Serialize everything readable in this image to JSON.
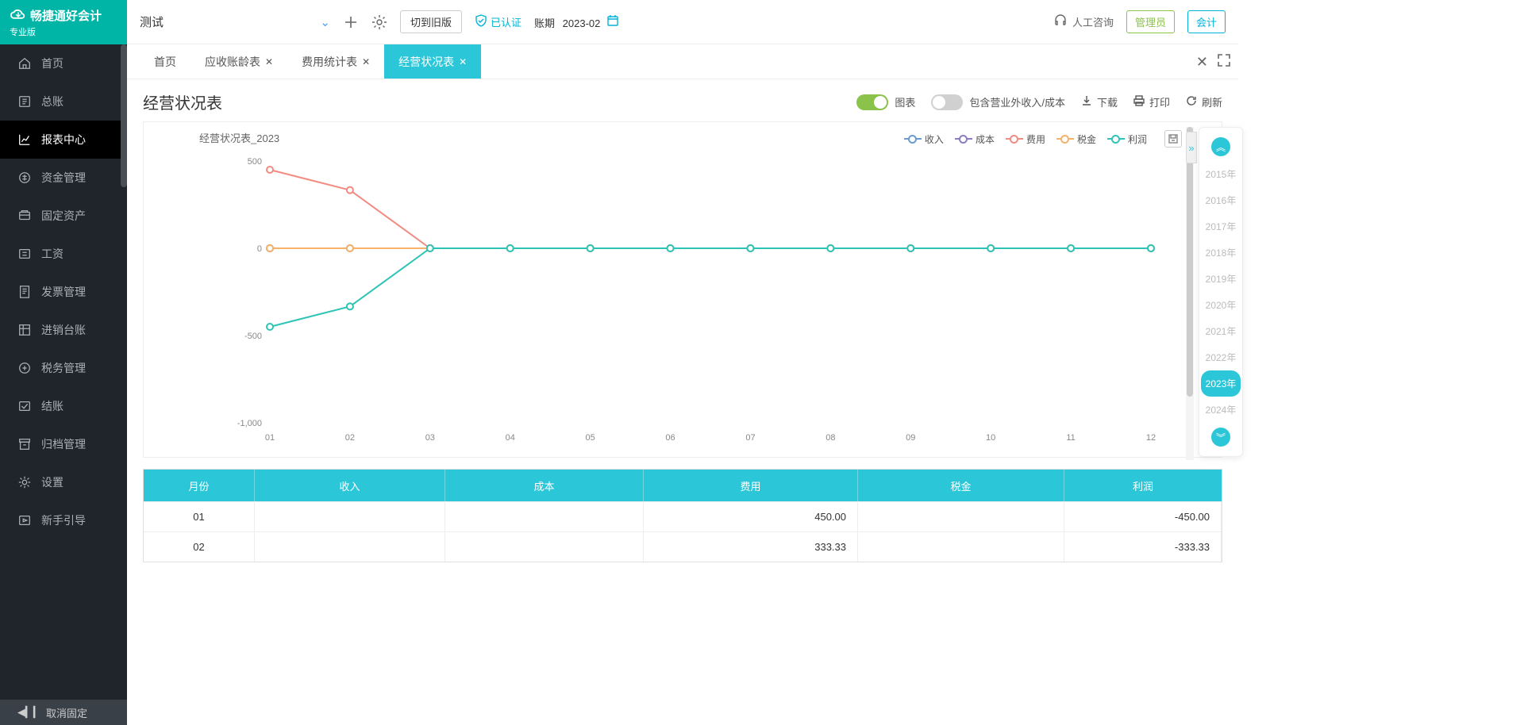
{
  "brand": {
    "name": "畅捷通好会计",
    "edition": "专业版"
  },
  "sidebar": {
    "items": [
      {
        "label": "首页",
        "icon": "home"
      },
      {
        "label": "总账",
        "icon": "ledger"
      },
      {
        "label": "报表中心",
        "icon": "report",
        "active": true
      },
      {
        "label": "资金管理",
        "icon": "fund"
      },
      {
        "label": "固定资产",
        "icon": "asset"
      },
      {
        "label": "工资",
        "icon": "salary"
      },
      {
        "label": "发票管理",
        "icon": "invoice"
      },
      {
        "label": "进销台账",
        "icon": "stock"
      },
      {
        "label": "税务管理",
        "icon": "tax"
      },
      {
        "label": "结账",
        "icon": "close"
      },
      {
        "label": "归档管理",
        "icon": "archive"
      },
      {
        "label": "设置",
        "icon": "setting"
      },
      {
        "label": "新手引导",
        "icon": "guide"
      }
    ],
    "pin": "取消固定"
  },
  "topbar": {
    "org": "测试",
    "switch_old": "切到旧版",
    "certified": "已认证",
    "period_label": "账期",
    "period_value": "2023-02",
    "consult": "人工咨询",
    "role1": "管理员",
    "role2": "会计"
  },
  "tabs": {
    "items": [
      {
        "label": "首页",
        "closable": false
      },
      {
        "label": "应收账龄表",
        "closable": true
      },
      {
        "label": "费用统计表",
        "closable": true
      },
      {
        "label": "经营状况表",
        "closable": true,
        "active": true
      }
    ]
  },
  "page": {
    "title": "经营状况表",
    "toggle_chart": "图表",
    "toggle_include": "包含营业外收入/成本",
    "download": "下载",
    "print": "打印",
    "refresh": "刷新"
  },
  "chart": {
    "title": "经营状况表_2023",
    "type": "line",
    "x_categories": [
      "01",
      "02",
      "03",
      "04",
      "05",
      "06",
      "07",
      "08",
      "09",
      "10",
      "11",
      "12"
    ],
    "y_ticks": [
      -1000,
      -500,
      0,
      500
    ],
    "ylim": [
      -1000,
      500
    ],
    "series": [
      {
        "name": "收入",
        "color": "#6b9bd1",
        "values": [
          0,
          0,
          0,
          0,
          0,
          0,
          0,
          0,
          0,
          0,
          0,
          0
        ]
      },
      {
        "name": "成本",
        "color": "#8e7cc3",
        "values": [
          0,
          0,
          0,
          0,
          0,
          0,
          0,
          0,
          0,
          0,
          0,
          0
        ]
      },
      {
        "name": "费用",
        "color": "#f28b82",
        "values": [
          450,
          333.33,
          0,
          0,
          0,
          0,
          0,
          0,
          0,
          0,
          0,
          0
        ]
      },
      {
        "name": "税金",
        "color": "#f6b26b",
        "values": [
          0,
          0,
          0,
          0,
          0,
          0,
          0,
          0,
          0,
          0,
          0,
          0
        ]
      },
      {
        "name": "利润",
        "color": "#2ec4b6",
        "values": [
          -450,
          -333.33,
          0,
          0,
          0,
          0,
          0,
          0,
          0,
          0,
          0,
          0
        ]
      }
    ],
    "marker_radius": 4,
    "line_width": 2,
    "background": "#ffffff",
    "axis_color": "#888",
    "tick_fontsize": 11
  },
  "table": {
    "columns": [
      "月份",
      "收入",
      "成本",
      "费用",
      "税金",
      "利润"
    ],
    "rows": [
      [
        "01",
        "",
        "",
        "450.00",
        "",
        "-450.00"
      ],
      [
        "02",
        "",
        "",
        "333.33",
        "",
        "-333.33"
      ]
    ]
  },
  "years": {
    "list": [
      "2015年",
      "2016年",
      "2017年",
      "2018年",
      "2019年",
      "2020年",
      "2021年",
      "2022年",
      "2023年",
      "2024年"
    ],
    "active": "2023年"
  }
}
